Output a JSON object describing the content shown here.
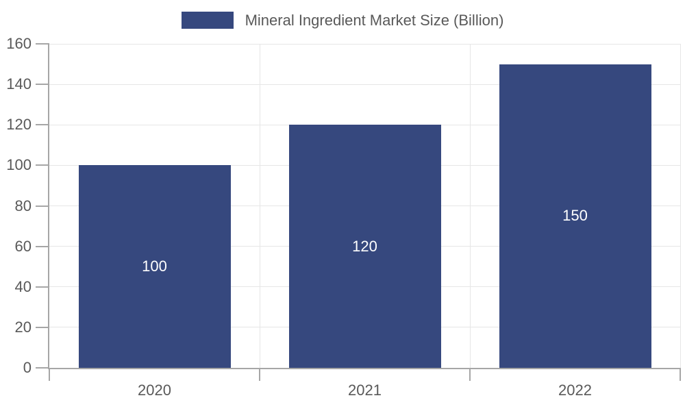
{
  "chart_data": {
    "type": "bar",
    "title": "Mineral Ingredient Market Size (Billion)",
    "categories": [
      "2020",
      "2021",
      "2022"
    ],
    "series": [
      {
        "name": "Mineral Ingredient Market Size (Billion)",
        "values": [
          100,
          120,
          150
        ]
      }
    ],
    "data_labels": [
      "100",
      "120",
      "150"
    ],
    "xlabel": "",
    "ylabel": "",
    "ylim": [
      0,
      160
    ],
    "ytick_step": 20,
    "yticks": [
      0,
      20,
      40,
      60,
      80,
      100,
      120,
      140,
      160
    ],
    "grid": true,
    "legend_position": "top-center",
    "colors": {
      "bar": "#36487E",
      "axis": "#a6a6a6",
      "grid": "#e6e6e6",
      "tick_label": "#595959",
      "data_label": "#ffffff",
      "background": "#ffffff"
    }
  }
}
